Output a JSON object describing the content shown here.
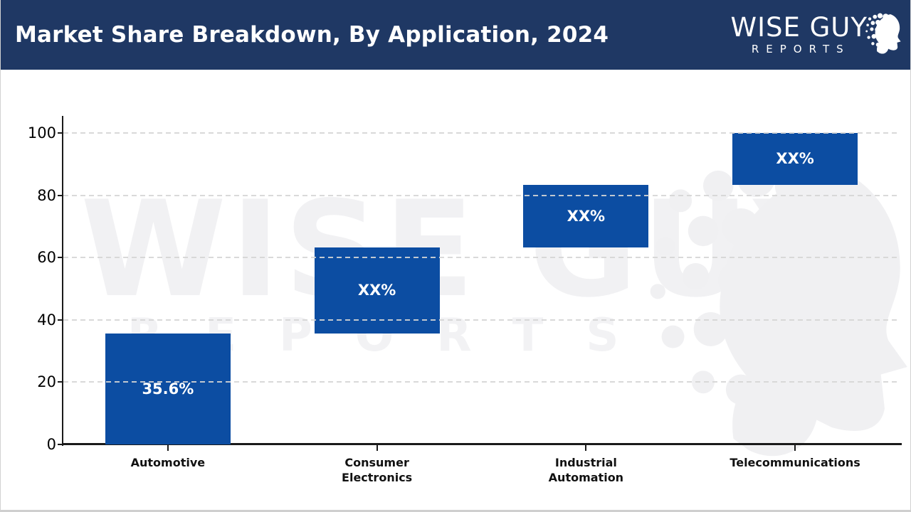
{
  "header": {
    "title": "Market Share Breakdown, By Application, 2024",
    "bg_color": "#1f3864",
    "logo": {
      "wordmark": "WISE GUY",
      "subtext": "REPORTS"
    }
  },
  "watermark": {
    "wordmark": "WISE GUY",
    "subtext": "REPORTS"
  },
  "chart_data": {
    "type": "bar",
    "variant": "waterfall",
    "title": "Market Share Breakdown, By Application, 2024",
    "categories": [
      "Automotive",
      "Consumer Electronics",
      "Industrial Automation",
      "Telecommunications"
    ],
    "x_tick_lines": [
      [
        "Automotive"
      ],
      [
        "Consumer",
        "Electronics"
      ],
      [
        "Industrial",
        "Automation"
      ],
      [
        "Telecommunications"
      ]
    ],
    "segments": [
      {
        "category": "Automotive",
        "start": 0,
        "end": 35.6,
        "label": "35.6%"
      },
      {
        "category": "Consumer Electronics",
        "start": 35.6,
        "end": 63.3,
        "label": "XX%"
      },
      {
        "category": "Industrial Automation",
        "start": 63.3,
        "end": 83.4,
        "label": "XX%"
      },
      {
        "category": "Telecommunications",
        "start": 83.4,
        "end": 100,
        "label": "XX%"
      }
    ],
    "values": [
      35.6,
      27.7,
      20.1,
      16.6
    ],
    "bar_labels": [
      "35.6%",
      "XX%",
      "XX%",
      "XX%"
    ],
    "xlabel": "",
    "ylabel": "",
    "ylim": [
      0,
      100
    ],
    "yticks": [
      0,
      20,
      40,
      60,
      80,
      100
    ],
    "grid": "horizontal dashed",
    "legend": "none",
    "bar_color": "#0c4da2",
    "bar_label_color": "#ffffff",
    "axis_color": "#1a1a1a",
    "grid_color": "#d5d5d5"
  }
}
